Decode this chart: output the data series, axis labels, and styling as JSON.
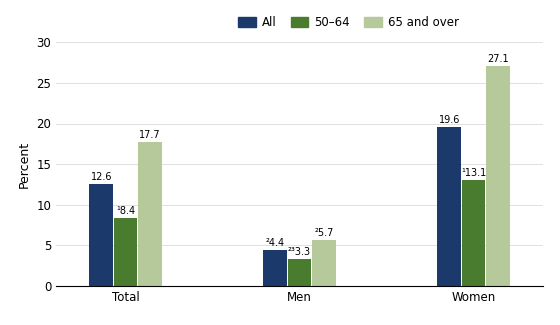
{
  "groups": [
    "Total",
    "Men",
    "Women"
  ],
  "series": {
    "All": [
      12.6,
      4.4,
      19.6
    ],
    "50-64": [
      8.4,
      3.3,
      13.1
    ],
    "65 and over": [
      17.7,
      5.7,
      27.1
    ]
  },
  "bar_labels": {
    "All": [
      "12.6",
      "²4.4",
      "19.6"
    ],
    "50-64": [
      "¹8.4",
      "²³3.3",
      "¹13.1"
    ],
    "65 and over": [
      "17.7",
      "²5.7",
      "27.1"
    ]
  },
  "colors": {
    "All": "#1b3a6b",
    "50-64": "#4a7c2f",
    "65 and over": "#b5c99a"
  },
  "ylabel": "Percent",
  "ylim": [
    0,
    30
  ],
  "yticks": [
    0,
    5,
    10,
    15,
    20,
    25,
    30
  ],
  "bar_width": 0.28,
  "group_centers": [
    1.0,
    3.0,
    5.0
  ],
  "legend_labels": [
    "All",
    "50–64",
    "65 and over"
  ]
}
